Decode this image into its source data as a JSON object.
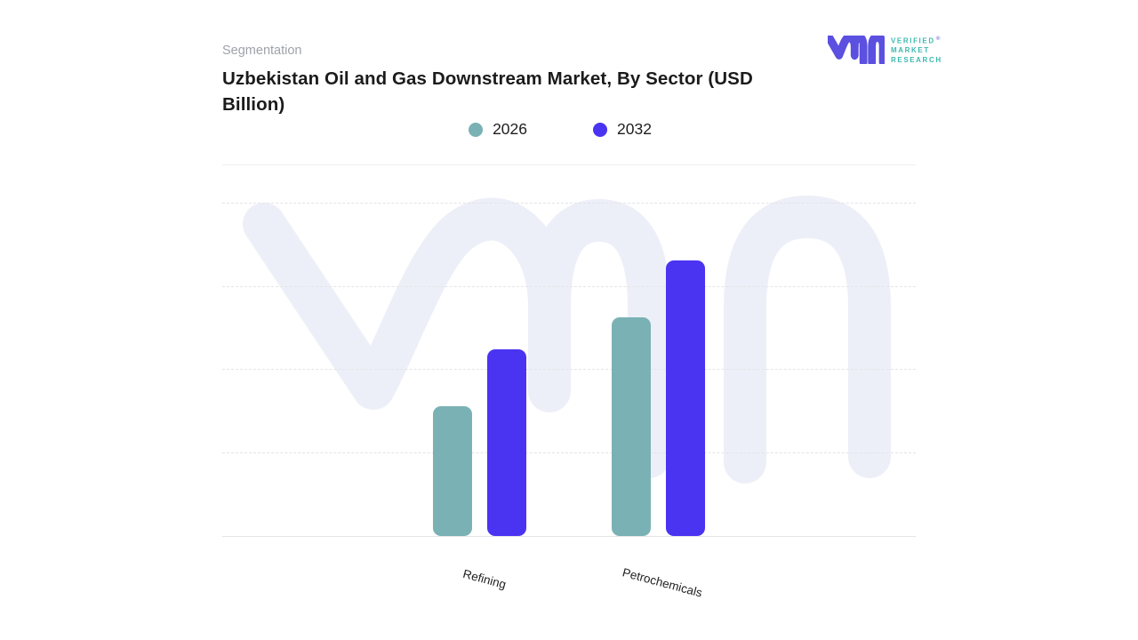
{
  "header": {
    "eyebrow": "Segmentation",
    "title": "Uzbekistan Oil and Gas Downstream Market, By Sector (USD Billion)"
  },
  "logo": {
    "monogram": "vmr-monogram",
    "monogram_color": "#5B50E0",
    "lines": [
      "VERIFIED",
      "MARKET",
      "RESEARCH"
    ],
    "registered_mark": "®",
    "text_color": "#3CB9AF"
  },
  "watermark": {
    "name": "vmr-monogram-watermark",
    "color": "#EDEFF8"
  },
  "chart_data": {
    "type": "bar",
    "title": "Uzbekistan Oil and Gas Downstream Market, By Sector (USD Billion)",
    "categories": [
      "Refining",
      "Petrochemicals"
    ],
    "series": [
      {
        "name": "2026",
        "color": "#7AB1B4",
        "values": [
          1.56,
          2.62
        ]
      },
      {
        "name": "2032",
        "color": "#4B33F2",
        "values": [
          2.24,
          3.31
        ]
      }
    ],
    "xlabel": "",
    "ylabel": "",
    "units_hint": "USD Billion (stated in title)",
    "ylim": [
      0,
      4
    ],
    "yticks_labeled": false,
    "gridlines": "horizontal-dashed",
    "legend_position": "top-center",
    "bar_corner_radius": 9,
    "note": "Axis has no numeric labels; values are estimated in gridline units (1 unit = one dashed-gridline interval above the baseline)."
  }
}
